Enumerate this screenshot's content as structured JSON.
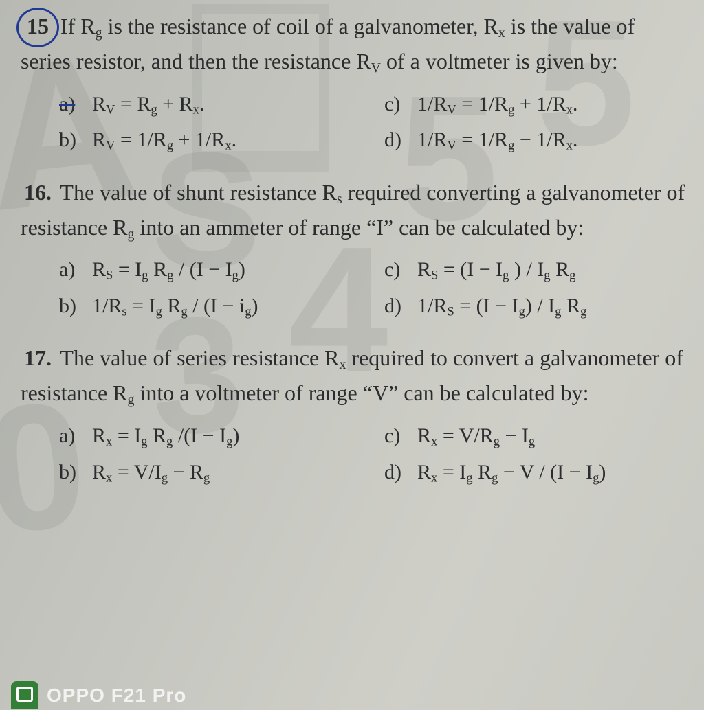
{
  "q15": {
    "number": "15",
    "stem_line1": "If R",
    "stem_sub1": "g",
    "stem_line2": " is the resistance of coil of a galvanometer, R",
    "stem_sub2": "x",
    "stem_line3": " is the value of series resistor, and then the resistance R",
    "stem_sub3": "V",
    "stem_line4": " of a voltmeter is given by:",
    "opts": {
      "a": {
        "label": "a)",
        "text": "Rᵥ = R_g + R_x."
      },
      "b": {
        "label": "b)",
        "text": "Rᵥ = 1/R_g + 1/R_x."
      },
      "c": {
        "label": "c)",
        "text": "1/Rᵥ = 1/R_g + 1/R_x."
      },
      "d": {
        "label": "d)",
        "text": "1/Rᵥ = 1/R_g − 1/R_x."
      }
    }
  },
  "q16": {
    "number": "16.",
    "stem_line1": "The value of shunt resistance R",
    "stem_sub1": "s",
    "stem_line2": " required converting a galvanometer of resistance R",
    "stem_sub2": "g",
    "stem_line3": " into an ammeter of range “I” can be calculated by:",
    "opts": {
      "a": {
        "label": "a)",
        "text": "Rs = I_g R_g / (I − I_g)"
      },
      "b": {
        "label": "b)",
        "text": "1/R_s = I_g R_g / (I − i_g)"
      },
      "c": {
        "label": "c)",
        "text": "R_s = (I − I_g ) / I_g R_g"
      },
      "d": {
        "label": "d)",
        "text": "1/R_s = (I − I_g) / I_g R_g"
      }
    }
  },
  "q17": {
    "number": "17.",
    "stem_line1": "The value of series resistance R",
    "stem_sub1": "x",
    "stem_line2": " required to convert a galvanometer of resistance R",
    "stem_sub2": "g",
    "stem_line3": " into a voltmeter of range “V” can be calculated by:",
    "opts": {
      "a": {
        "label": "a)",
        "text": "R_x = I_g R_g /(I − I_g)"
      },
      "b": {
        "label": "b)",
        "text": "R_x = V/I_g − R_g"
      },
      "c": {
        "label": "c)",
        "text": "R_x = V/R_g − I_g"
      },
      "d": {
        "label": "d)",
        "text": "R_x = I_g R_g − V / (I − I_g)"
      }
    }
  },
  "footer": {
    "brand": "OPPO F21 Pro"
  },
  "watermark": {
    "d1": "0",
    "d2": "3",
    "d3": "4",
    "d4": "5",
    "d5": "5",
    "a": "A",
    "s": "S"
  },
  "colors": {
    "penBlue": "#1f3a93",
    "text": "#2a2c2e"
  }
}
